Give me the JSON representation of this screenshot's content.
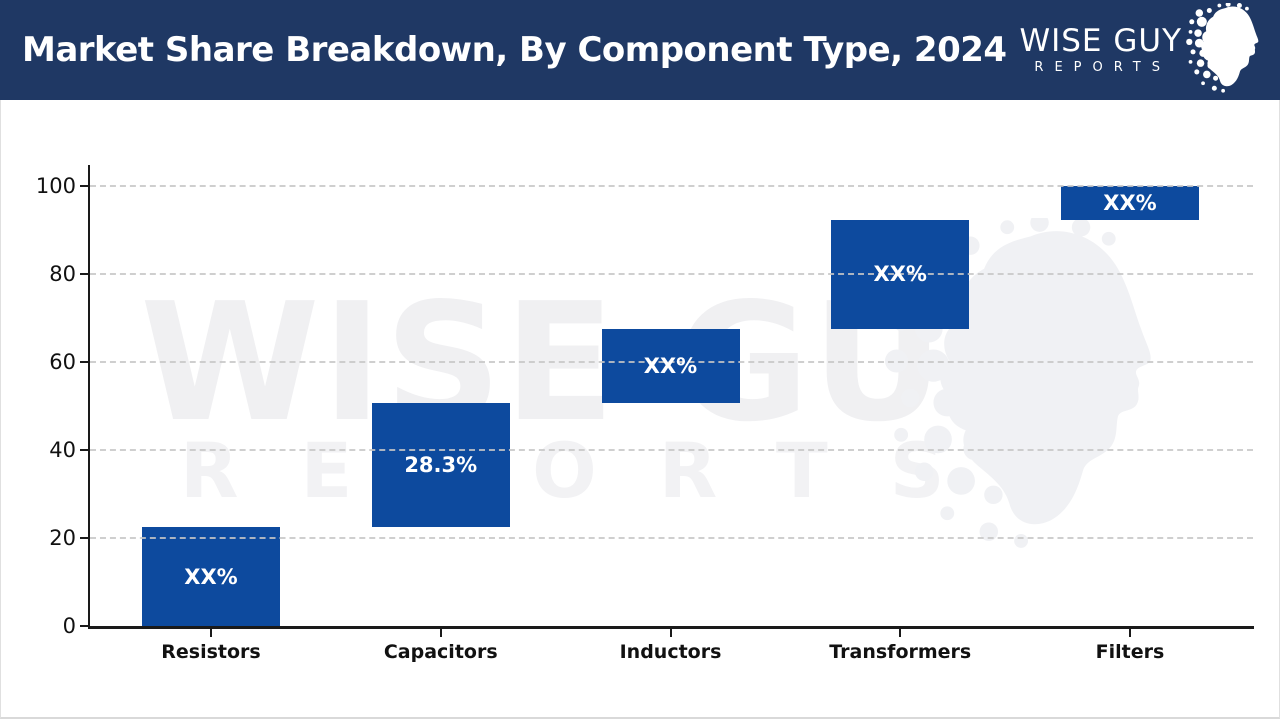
{
  "header": {
    "title": "Market Share Breakdown, By Component Type, 2024"
  },
  "brand": {
    "line1": "WISE GUY",
    "line2": "REPORTS"
  },
  "watermark": {
    "line1": "WISE GUY",
    "line2": "REPORTS"
  },
  "colors": {
    "header_bg": "#1f3864",
    "bar": "#0d4a9e",
    "bar_label": "#ffffff",
    "axis": "#1a1a1a",
    "grid": "#c7c7c7",
    "watermark": "#f0f0f2",
    "watermark_face": "#f0f1f4"
  },
  "chart_data": {
    "type": "bar",
    "variant": "waterfall",
    "title": "Market Share Breakdown, By Component Type, 2024",
    "categories": [
      "Resistors",
      "Capacitors",
      "Inductors",
      "Transformers",
      "Filters"
    ],
    "segments": [
      {
        "category": "Resistors",
        "start": 0,
        "end": 22.4,
        "value_label": "XX%"
      },
      {
        "category": "Capacitors",
        "start": 22.4,
        "end": 50.7,
        "value_label": "28.3%"
      },
      {
        "category": "Inductors",
        "start": 50.7,
        "end": 67.5,
        "value_label": "XX%"
      },
      {
        "category": "Transformers",
        "start": 67.5,
        "end": 92.3,
        "value_label": "XX%"
      },
      {
        "category": "Filters",
        "start": 92.3,
        "end": 100,
        "value_label": "XX%"
      }
    ],
    "xlabel": "",
    "ylabel": "",
    "yticks": [
      0,
      20,
      40,
      60,
      80,
      100
    ],
    "ylim": [
      0,
      105
    ],
    "grid": "horizontal-dashed",
    "legend": "none"
  }
}
